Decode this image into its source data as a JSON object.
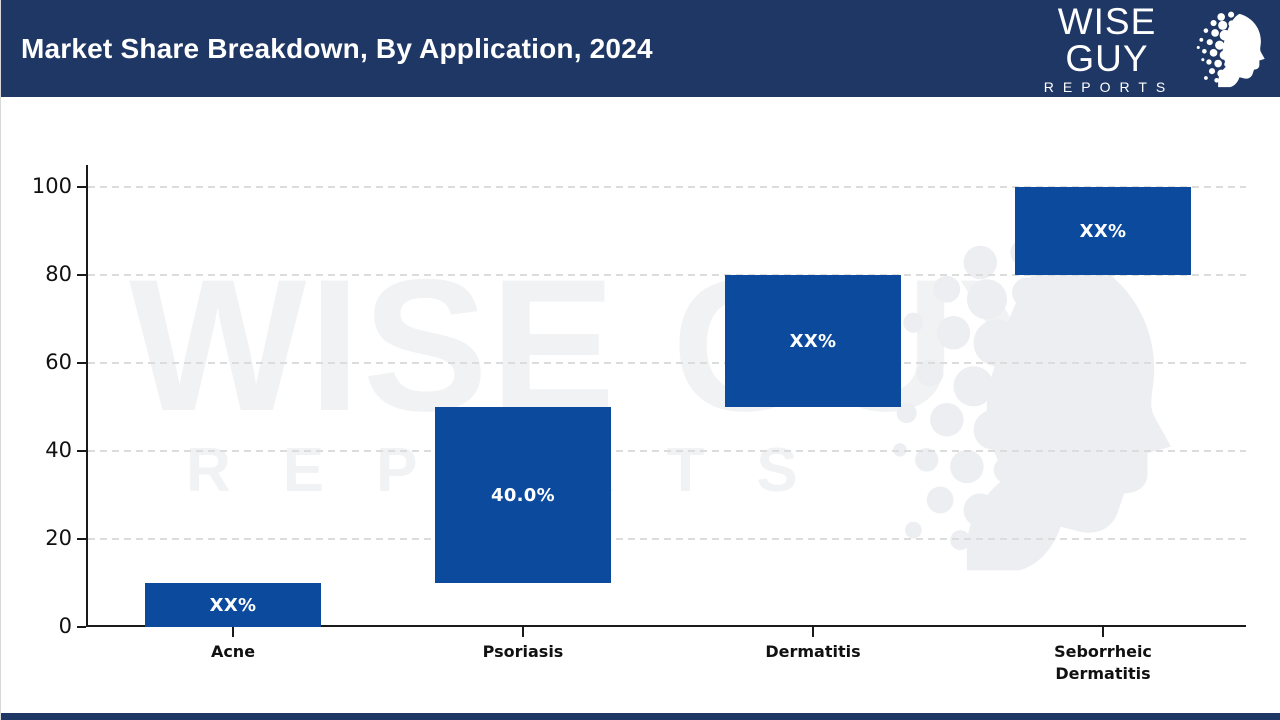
{
  "header": {
    "title": "Market Share Breakdown, By Application, 2024",
    "bg_color": "#1f3765",
    "logo": {
      "line1": "WISE GUY",
      "line2": "REPORTS",
      "icon": "dotted-face-profile"
    }
  },
  "watermark": {
    "line1": "WISE GUY",
    "line2": "REPORTS",
    "icon": "dotted-face-profile"
  },
  "chart_data": {
    "type": "bar",
    "variant": "floating-waterfall",
    "title": "Market Share Breakdown, By Application, 2024",
    "categories": [
      "Acne",
      "Psoriasis",
      "Dermatitis",
      "Seborrheic Dermatitis"
    ],
    "series": [
      {
        "name": "Market Share (%)",
        "segments": [
          {
            "category": "Acne",
            "start": 0,
            "end": 10,
            "label": "XX%"
          },
          {
            "category": "Psoriasis",
            "start": 10,
            "end": 50,
            "label": "40.0%"
          },
          {
            "category": "Dermatitis",
            "start": 50,
            "end": 80,
            "label": "XX%"
          },
          {
            "category": "Seborrheic Dermatitis",
            "start": 80,
            "end": 100,
            "label": "XX%"
          }
        ]
      }
    ],
    "xlabel": "",
    "ylabel": "",
    "ylim": [
      0,
      100
    ],
    "yticks": [
      0,
      20,
      40,
      60,
      80,
      100
    ],
    "grid": "horizontal-dashed",
    "legend": "none",
    "bar_color": "#0c4a9e",
    "label_color": "#ffffff"
  }
}
